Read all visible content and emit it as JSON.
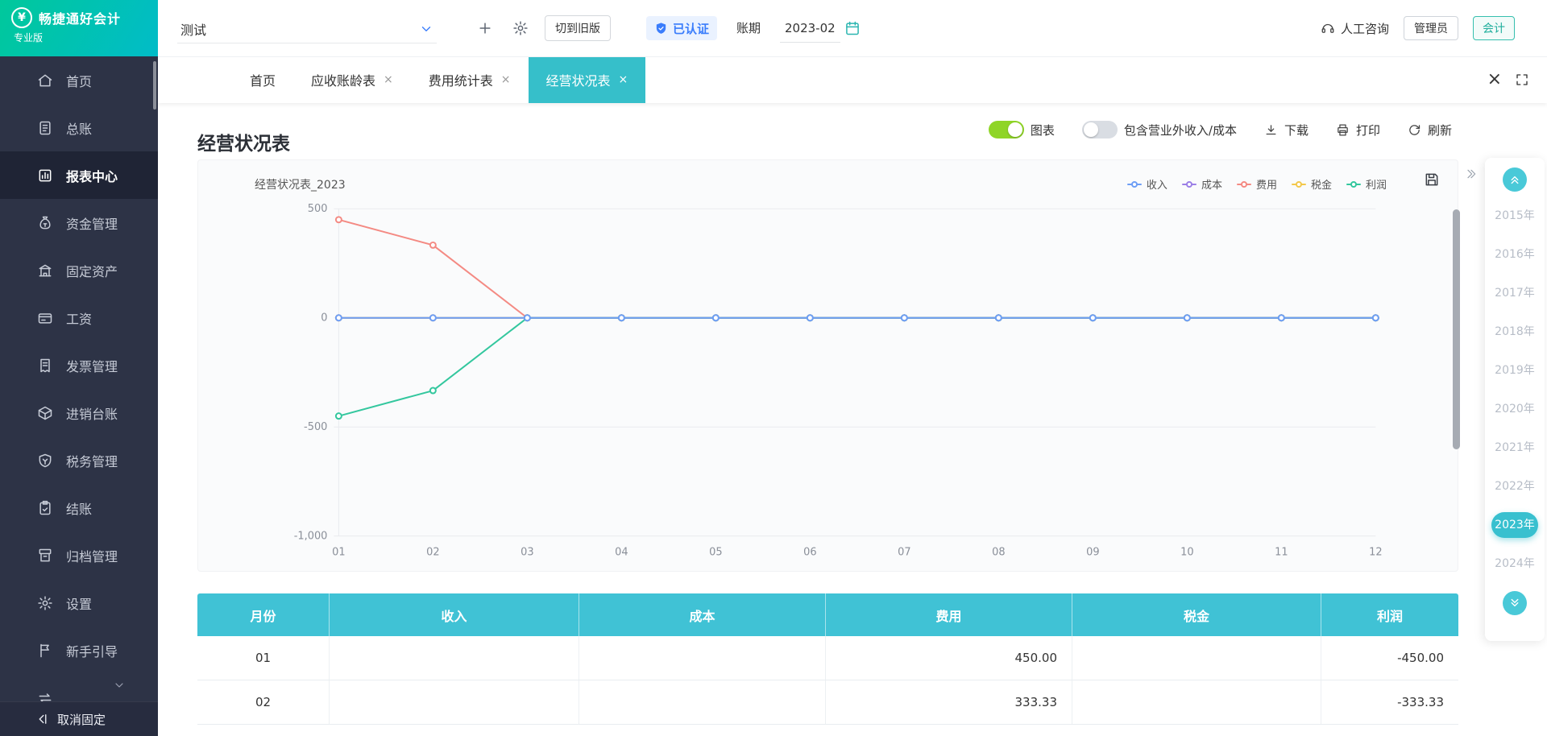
{
  "app": {
    "logo_title": "畅捷通好会计",
    "logo_subtitle": "专业版"
  },
  "colors": {
    "accent_teal": "#36bfca",
    "table_header_teal": "#40c2d5",
    "sidebar_bg": "#2d3346",
    "toggle_on_green": "#8fd527",
    "certified_blue": "#3a7dfc",
    "year_selected_teal": "#38c0cf"
  },
  "sidebar": {
    "items": [
      {
        "label": "首页",
        "icon": "home-icon",
        "active": false
      },
      {
        "label": "总账",
        "icon": "ledger-icon",
        "active": false
      },
      {
        "label": "报表中心",
        "icon": "report-icon",
        "active": true
      },
      {
        "label": "资金管理",
        "icon": "fund-icon",
        "active": false
      },
      {
        "label": "固定资产",
        "icon": "asset-icon",
        "active": false
      },
      {
        "label": "工资",
        "icon": "salary-icon",
        "active": false
      },
      {
        "label": "发票管理",
        "icon": "invoice-icon",
        "active": false
      },
      {
        "label": "进销台账",
        "icon": "inventory-icon",
        "active": false
      },
      {
        "label": "税务管理",
        "icon": "tax-icon",
        "active": false
      },
      {
        "label": "结账",
        "icon": "closing-icon",
        "active": false
      },
      {
        "label": "归档管理",
        "icon": "archive-icon",
        "active": false
      },
      {
        "label": "设置",
        "icon": "settings-icon",
        "active": false
      },
      {
        "label": "新手引导",
        "icon": "guide-icon",
        "active": false
      }
    ],
    "partial_item_icon": "transfer-icon",
    "unpin_label": "取消固定"
  },
  "topbar": {
    "company_selector": "测试",
    "switch_old_label": "切到旧版",
    "certified_label": "已认证",
    "period_label": "账期",
    "period_value": "2023-02",
    "support_label": "人工咨询",
    "admin_label": "管理员",
    "role_label": "会计"
  },
  "tabs": [
    {
      "label": "首页",
      "closable": false,
      "active": false
    },
    {
      "label": "应收账龄表",
      "closable": true,
      "active": false
    },
    {
      "label": "费用统计表",
      "closable": true,
      "active": false
    },
    {
      "label": "经营状况表",
      "closable": true,
      "active": true
    }
  ],
  "content": {
    "title": "经营状况表",
    "chart_toggle_label": "图表",
    "chart_toggle_on": true,
    "include_toggle_label": "包含营业外收入/成本",
    "include_toggle_on": false,
    "download_label": "下载",
    "print_label": "打印",
    "refresh_label": "刷新"
  },
  "chart_data": {
    "type": "line",
    "title": "经营状况表_2023",
    "x": [
      "01",
      "02",
      "03",
      "04",
      "05",
      "06",
      "07",
      "08",
      "09",
      "10",
      "11",
      "12"
    ],
    "series": [
      {
        "name": "收入",
        "color": "#6e9ef5",
        "values": [
          0,
          0,
          0,
          0,
          0,
          0,
          0,
          0,
          0,
          0,
          0,
          0
        ]
      },
      {
        "name": "成本",
        "color": "#9b7fe6",
        "values": [
          0,
          0,
          0,
          0,
          0,
          0,
          0,
          0,
          0,
          0,
          0,
          0
        ]
      },
      {
        "name": "费用",
        "color": "#f48a83",
        "values": [
          450,
          333.33,
          0,
          0,
          0,
          0,
          0,
          0,
          0,
          0,
          0,
          0
        ]
      },
      {
        "name": "税金",
        "color": "#f3c84b",
        "values": [
          0,
          0,
          0,
          0,
          0,
          0,
          0,
          0,
          0,
          0,
          0,
          0
        ]
      },
      {
        "name": "利润",
        "color": "#33c79e",
        "values": [
          -450,
          -333.33,
          0,
          0,
          0,
          0,
          0,
          0,
          0,
          0,
          0,
          0
        ]
      }
    ],
    "ylim": [
      -1000,
      500
    ],
    "yticks": [
      500,
      0,
      -500,
      -1000
    ],
    "ytick_labels": [
      "500",
      "0",
      "-500",
      "-1,000"
    ],
    "legend_position": "top-right",
    "grid": true
  },
  "table": {
    "headers": [
      "月份",
      "收入",
      "成本",
      "费用",
      "税金",
      "利润"
    ],
    "rows": [
      [
        "01",
        "",
        "",
        "450.00",
        "",
        "-450.00"
      ],
      [
        "02",
        "",
        "",
        "333.33",
        "",
        "-333.33"
      ]
    ]
  },
  "year_panel": {
    "years": [
      "2015年",
      "2016年",
      "2017年",
      "2018年",
      "2019年",
      "2020年",
      "2021年",
      "2022年",
      "2023年",
      "2024年"
    ],
    "selected": "2023年"
  }
}
